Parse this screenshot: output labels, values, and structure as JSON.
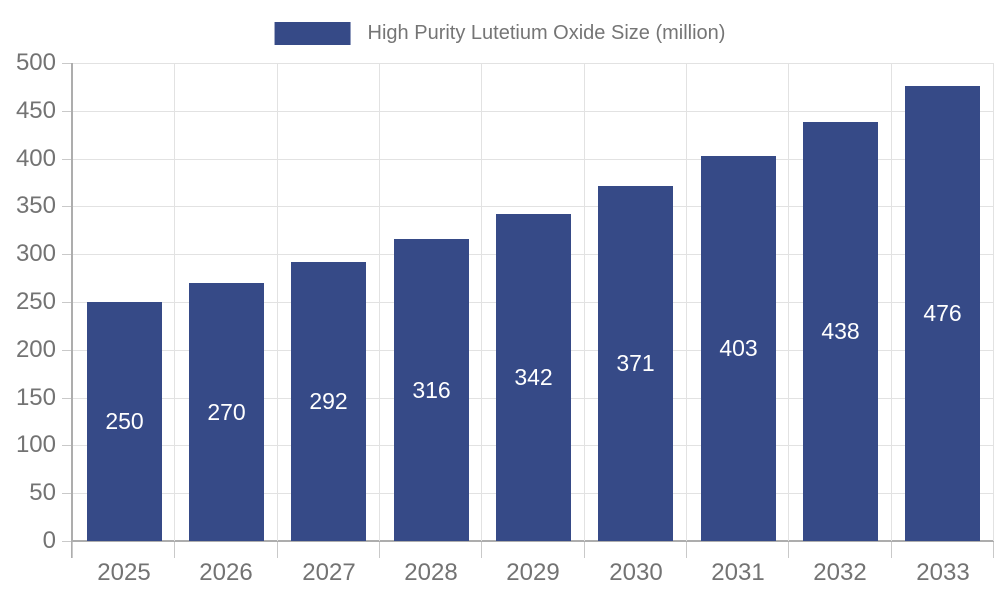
{
  "chart_data": {
    "type": "bar",
    "title": "High Purity Lutetium Oxide Size (million)",
    "legend": [
      "High Purity Lutetium Oxide Size (million)"
    ],
    "legend_position": "top",
    "categories": [
      "2025",
      "2026",
      "2027",
      "2028",
      "2029",
      "2030",
      "2031",
      "2032",
      "2033"
    ],
    "values": [
      250,
      270,
      292,
      316,
      342,
      371,
      403,
      438,
      476
    ],
    "xlabel": "",
    "ylabel": "",
    "ylim": [
      0,
      500
    ],
    "ytick_step": 50,
    "yticks": [
      0,
      50,
      100,
      150,
      200,
      250,
      300,
      350,
      400,
      450,
      500
    ],
    "grid": true,
    "value_label_position": "inside-center",
    "colors": {
      "bar": "#364A87",
      "value_label": "#FFFFFF",
      "axis_text": "#737373",
      "legend_text": "#757575",
      "gridline": "#E2E2E2",
      "axis_line": "#ADADAD"
    }
  }
}
